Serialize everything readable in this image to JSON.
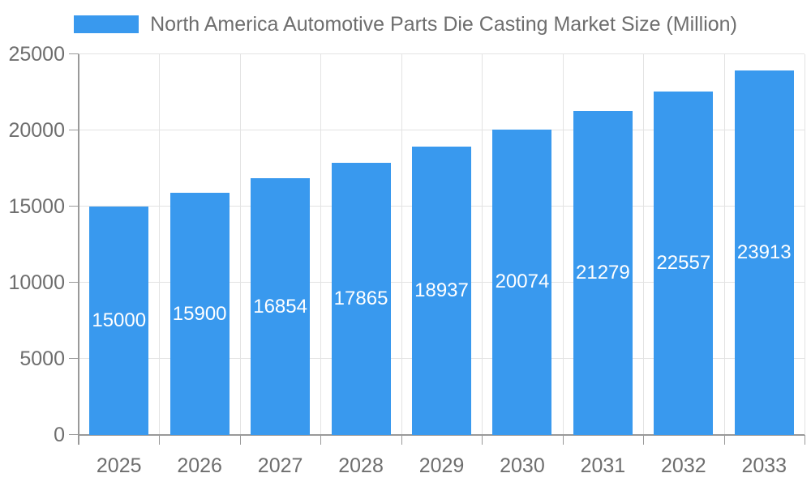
{
  "chart_data": {
    "type": "bar",
    "title": "",
    "legend": {
      "position": "top",
      "label": "North America Automotive Parts Die Casting Market Size (Million)"
    },
    "categories": [
      "2025",
      "2026",
      "2027",
      "2028",
      "2029",
      "2030",
      "2031",
      "2032",
      "2033"
    ],
    "series": [
      {
        "name": "North America Automotive Parts Die Casting Market Size (Million)",
        "values": [
          15000,
          15900,
          16854,
          17865,
          18937,
          20074,
          21279,
          22557,
          23913
        ],
        "color": "#3999EE"
      }
    ],
    "value_labels": {
      "position": "inside-center",
      "color": "#FFFFFF"
    },
    "xlabel": "",
    "ylabel": "",
    "ylim": [
      0,
      25000
    ],
    "y_ticks": [
      0,
      5000,
      10000,
      15000,
      20000,
      25000
    ],
    "grid": true
  },
  "style": {
    "bar_color": "#3999EE",
    "text_color": "#6E6E6E",
    "grid_color": "#E3E3E3",
    "axis_color": "#999999",
    "value_label_color": "#FFFFFF",
    "background_color": "#FFFFFF"
  }
}
